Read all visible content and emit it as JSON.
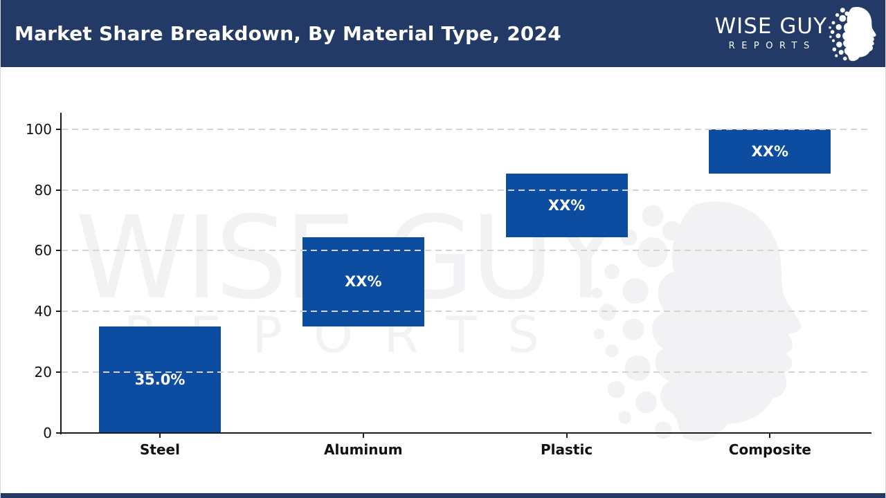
{
  "header": {
    "title": "Market Share Breakdown, By Material Type, 2024",
    "logo": {
      "name": "WISE GUY",
      "subtitle": "REPORTS"
    }
  },
  "watermark": {
    "line1": "WISE GUY",
    "line2": "REPORTS"
  },
  "colors": {
    "header_bg": "#233a66",
    "footer_bg": "#233a66",
    "canvas_bg": "#ffffff",
    "bar": "#0d4da1",
    "bar_label": "#ffffff",
    "axis": "#1c1c1c",
    "gridline": "#d4d4d4",
    "watermark": "#f2f2f5",
    "title_text": "#ffffff"
  },
  "chart_data": {
    "type": "bar",
    "subtype": "waterfall",
    "title": "Market Share Breakdown, By Material Type, 2024",
    "categories": [
      "Steel",
      "Aluminum",
      "Plastic",
      "Composite"
    ],
    "segments": [
      {
        "category": "Steel",
        "start": 0,
        "end": 35,
        "label": "35.0%"
      },
      {
        "category": "Aluminum",
        "start": 35,
        "end": 64.5,
        "label": "XX%"
      },
      {
        "category": "Plastic",
        "start": 64.5,
        "end": 85.5,
        "label": "XX%"
      },
      {
        "category": "Composite",
        "start": 85.5,
        "end": 100,
        "label": "XX%"
      }
    ],
    "yticks": [
      0,
      20,
      40,
      60,
      80,
      100
    ],
    "ylim": [
      0,
      105.5
    ],
    "xlabel": "",
    "ylabel": "",
    "grid": "horizontal-dashed",
    "legend": null,
    "bar_value_labels_masked": true
  }
}
